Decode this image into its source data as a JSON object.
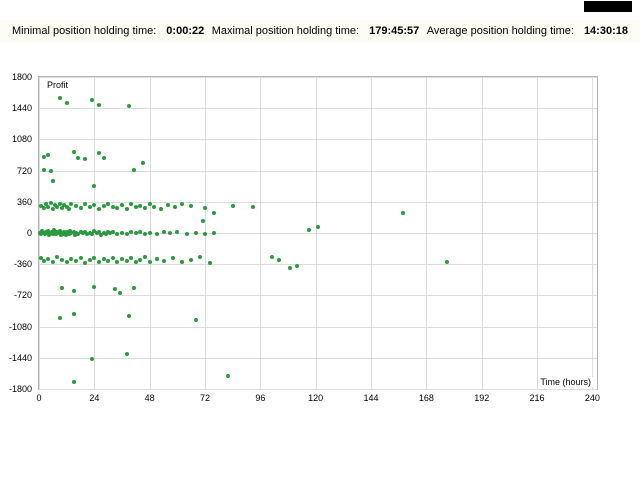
{
  "header": {
    "items": [
      {
        "label": "Minimal position holding time:",
        "value": "0:00:22"
      },
      {
        "label": "Maximal position holding time:",
        "value": "179:45:57"
      },
      {
        "label": "Average position holding time:",
        "value": "14:30:18"
      }
    ]
  },
  "chart_data": {
    "type": "scatter",
    "title": "",
    "xlabel": "Time (hours)",
    "ylabel": "Profit",
    "xlim": [
      0,
      242
    ],
    "ylim": [
      -1800,
      1800
    ],
    "x_ticks": [
      0,
      24,
      48,
      72,
      96,
      120,
      144,
      168,
      192,
      216,
      240
    ],
    "y_ticks": [
      1800,
      1440,
      1080,
      720,
      360,
      0,
      -360,
      -720,
      -1080,
      -1440,
      -1800
    ],
    "grid": true,
    "legend": "none",
    "colors": {
      "point": "#2a9a3f",
      "grid": "#dcdcdc",
      "frame": "#b5b5b5",
      "text": "#000000"
    },
    "points": [
      [
        0.5,
        5
      ],
      [
        1,
        -10
      ],
      [
        1.5,
        20
      ],
      [
        2,
        0
      ],
      [
        2.5,
        -15
      ],
      [
        3,
        10
      ],
      [
        3.5,
        -5
      ],
      [
        4,
        25
      ],
      [
        4.5,
        -20
      ],
      [
        5,
        5
      ],
      [
        5.5,
        15
      ],
      [
        6,
        -10
      ],
      [
        6.5,
        30
      ],
      [
        7,
        0
      ],
      [
        7.5,
        -15
      ],
      [
        8,
        10
      ],
      [
        8.5,
        -5
      ],
      [
        9,
        20
      ],
      [
        9.5,
        -20
      ],
      [
        10,
        5
      ],
      [
        10.5,
        -10
      ],
      [
        11,
        15
      ],
      [
        11.5,
        -25
      ],
      [
        12,
        10
      ],
      [
        12.5,
        0
      ],
      [
        13,
        -15
      ],
      [
        13.5,
        20
      ],
      [
        14,
        -5
      ],
      [
        15,
        10
      ],
      [
        15.5,
        -20
      ],
      [
        16,
        5
      ],
      [
        17,
        -10
      ],
      [
        18,
        15
      ],
      [
        19,
        -5
      ],
      [
        20,
        10
      ],
      [
        21,
        -15
      ],
      [
        22,
        5
      ],
      [
        23,
        -10
      ],
      [
        24,
        20
      ],
      [
        25,
        -5
      ],
      [
        26,
        10
      ],
      [
        27,
        -20
      ],
      [
        28,
        5
      ],
      [
        29,
        -10
      ],
      [
        30,
        15
      ],
      [
        31,
        -5
      ],
      [
        32,
        10
      ],
      [
        34,
        -15
      ],
      [
        36,
        5
      ],
      [
        38,
        -10
      ],
      [
        40,
        10
      ],
      [
        42,
        -5
      ],
      [
        44,
        15
      ],
      [
        46,
        -10
      ],
      [
        48,
        5
      ],
      [
        51,
        -15
      ],
      [
        54,
        10
      ],
      [
        57,
        -5
      ],
      [
        60,
        10
      ],
      [
        64,
        -10
      ],
      [
        68,
        5
      ],
      [
        72,
        -10
      ],
      [
        76,
        5
      ],
      [
        1,
        310
      ],
      [
        2,
        290
      ],
      [
        3,
        330
      ],
      [
        4,
        300
      ],
      [
        5,
        350
      ],
      [
        6,
        280
      ],
      [
        7,
        320
      ],
      [
        8,
        300
      ],
      [
        9,
        340
      ],
      [
        10,
        290
      ],
      [
        11,
        320
      ],
      [
        12,
        300
      ],
      [
        13,
        280
      ],
      [
        14,
        330
      ],
      [
        16,
        310
      ],
      [
        18,
        290
      ],
      [
        20,
        340
      ],
      [
        22,
        300
      ],
      [
        24,
        320
      ],
      [
        26,
        280
      ],
      [
        28,
        310
      ],
      [
        30,
        330
      ],
      [
        32,
        300
      ],
      [
        34,
        290
      ],
      [
        36,
        320
      ],
      [
        38,
        280
      ],
      [
        40,
        340
      ],
      [
        42,
        300
      ],
      [
        44,
        310
      ],
      [
        46,
        290
      ],
      [
        48,
        330
      ],
      [
        50,
        300
      ],
      [
        53,
        280
      ],
      [
        56,
        320
      ],
      [
        59,
        300
      ],
      [
        62,
        340
      ],
      [
        66,
        310
      ],
      [
        71,
        140
      ],
      [
        72,
        290
      ],
      [
        76,
        230
      ],
      [
        84,
        310
      ],
      [
        93,
        300
      ],
      [
        117,
        40
      ],
      [
        121,
        70
      ],
      [
        158,
        230
      ],
      [
        1,
        -290
      ],
      [
        2,
        -320
      ],
      [
        4,
        -300
      ],
      [
        6,
        -340
      ],
      [
        8,
        -280
      ],
      [
        10,
        -310
      ],
      [
        12,
        -330
      ],
      [
        14,
        -300
      ],
      [
        16,
        -320
      ],
      [
        18,
        -290
      ],
      [
        20,
        -350
      ],
      [
        22,
        -310
      ],
      [
        24,
        -290
      ],
      [
        26,
        -330
      ],
      [
        28,
        -300
      ],
      [
        30,
        -320
      ],
      [
        32,
        -290
      ],
      [
        34,
        -340
      ],
      [
        36,
        -300
      ],
      [
        38,
        -320
      ],
      [
        40,
        -290
      ],
      [
        42,
        -330
      ],
      [
        44,
        -310
      ],
      [
        46,
        -280
      ],
      [
        48,
        -340
      ],
      [
        51,
        -300
      ],
      [
        54,
        -320
      ],
      [
        58,
        -290
      ],
      [
        62,
        -330
      ],
      [
        66,
        -310
      ],
      [
        70,
        -280
      ],
      [
        74,
        -350
      ],
      [
        101,
        -280
      ],
      [
        104,
        -310
      ],
      [
        109,
        -400
      ],
      [
        112,
        -380
      ],
      [
        177,
        -330
      ],
      [
        9,
        1560
      ],
      [
        12,
        1500
      ],
      [
        23,
        1530
      ],
      [
        26,
        1480
      ],
      [
        39,
        1470
      ],
      [
        2,
        880
      ],
      [
        4,
        900
      ],
      [
        15,
        940
      ],
      [
        17,
        860
      ],
      [
        20,
        850
      ],
      [
        26,
        920
      ],
      [
        28,
        870
      ],
      [
        45,
        810
      ],
      [
        2,
        730
      ],
      [
        5,
        710
      ],
      [
        41,
        730
      ],
      [
        24,
        540
      ],
      [
        6,
        600
      ],
      [
        10,
        -640
      ],
      [
        15,
        -670
      ],
      [
        24,
        -620
      ],
      [
        33,
        -650
      ],
      [
        35,
        -690
      ],
      [
        41,
        -640
      ],
      [
        9,
        -980
      ],
      [
        15,
        -940
      ],
      [
        39,
        -960
      ],
      [
        68,
        -1000
      ],
      [
        23,
        -1450
      ],
      [
        38,
        -1400
      ],
      [
        15,
        -1720
      ],
      [
        82,
        -1650
      ]
    ]
  }
}
